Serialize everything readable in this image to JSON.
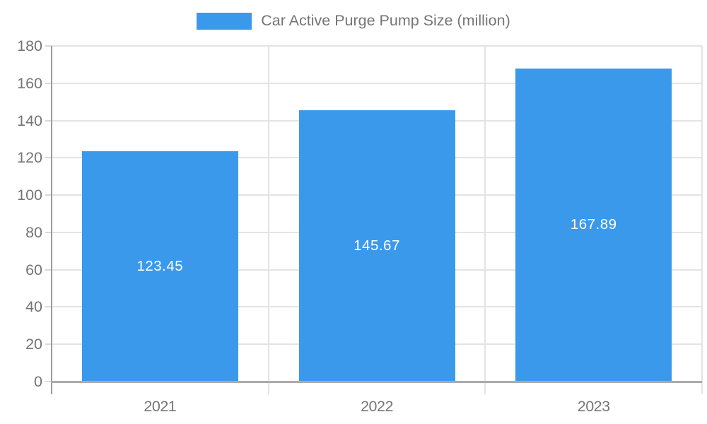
{
  "legend": {
    "label": "Car Active Purge Pump Size (million)"
  },
  "chart_data": {
    "type": "bar",
    "title": "Car Active Purge Pump Size (million)",
    "categories": [
      "2021",
      "2022",
      "2023"
    ],
    "series": [
      {
        "name": "Car Active Purge Pump Size (million)",
        "values": [
          123.45,
          145.67,
          167.89
        ]
      }
    ],
    "data_labels": [
      "123.45",
      "145.67",
      "167.89"
    ],
    "xlabel": "",
    "ylabel": "",
    "ylim": [
      0,
      180
    ],
    "yticks": [
      0,
      20,
      40,
      60,
      80,
      100,
      120,
      140,
      160,
      180
    ],
    "grid": true,
    "legend_position": "top-center",
    "data_label_position": "center-of-bar"
  },
  "colors": {
    "bar": "#3B99EC",
    "bar_label_text": "#FFFFFF",
    "legend_text": "#757575",
    "axis_text": "#757575",
    "grid_line": "#E3E3E3",
    "tick_line": "#D9D9D9",
    "y_axis_line": "#9C9C9C",
    "x_axis_line": "#ABABAB",
    "background": "#FFFFFF"
  }
}
